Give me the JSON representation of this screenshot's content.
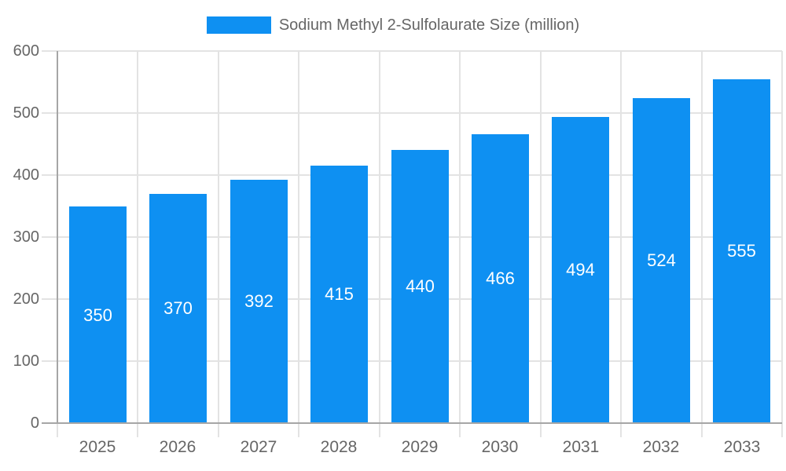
{
  "chart_data": {
    "type": "bar",
    "title": "",
    "legend": "Sodium Methyl 2-Sulfolaurate Size (million)",
    "legend_position": "top",
    "categories": [
      "2025",
      "2026",
      "2027",
      "2028",
      "2029",
      "2030",
      "2031",
      "2032",
      "2033"
    ],
    "values": [
      350,
      370,
      392,
      415,
      440,
      466,
      494,
      524,
      555
    ],
    "xlabel": "",
    "ylabel": "",
    "ylim": [
      0,
      600
    ],
    "ytick_step": 100,
    "ytick_labels": [
      "0",
      "100",
      "200",
      "300",
      "400",
      "500",
      "600"
    ],
    "grid": true,
    "colors": {
      "bar": "#0e90f2",
      "axis_label": "#666666",
      "value_label": "#ffffff",
      "gridline": "#e3e3e3",
      "axis_line": "#a6a6a6",
      "background": "#ffffff"
    }
  }
}
